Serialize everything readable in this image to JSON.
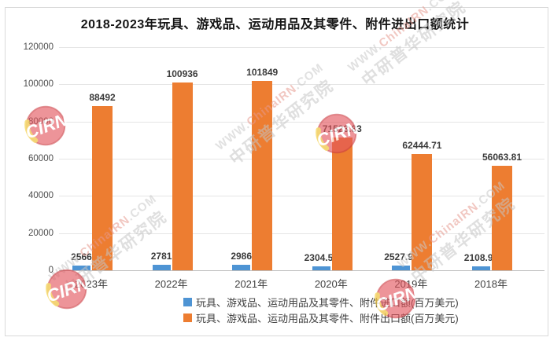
{
  "title": "2018-2023年玩具、游戏品、运动用品及其零件、附件进出口额统计",
  "chart_data": {
    "type": "bar",
    "title": "2018-2023年玩具、游戏品、运动用品及其零件、附件进出口额统计",
    "categories": [
      "2023年",
      "2022年",
      "2021年",
      "2020年",
      "2019年",
      "2018年"
    ],
    "series": [
      {
        "name": "玩具、游戏品、运动用品及其零件、附件进口额(百万美元)",
        "color": "#4E94D4",
        "values": [
          2566,
          2781,
          2986,
          2304.58,
          2527.93,
          2108.91
        ],
        "labels": [
          "2566",
          "2781",
          "2986",
          "2304.58",
          "2527.93",
          "2108.91"
        ]
      },
      {
        "name": "玩具、游戏品、运动用品及其零件、附件出口额(百万美元)",
        "color": "#ED7D31",
        "values": [
          88492,
          100936,
          101849,
          71523.83,
          62444.71,
          56063.81
        ],
        "labels": [
          "88492",
          "100936",
          "101849",
          "71523.83",
          "62444.71",
          "56063.81"
        ]
      }
    ],
    "xlabel": "",
    "ylabel": "",
    "ylim": [
      0,
      120000
    ],
    "ytick_interval": 20000,
    "yticks": [
      "0",
      "20000",
      "40000",
      "60000",
      "80000",
      "100000",
      "120000"
    ],
    "grid": true,
    "legend_position": "bottom"
  },
  "watermark": {
    "line1_prefix": "WWW.",
    "line1_brand": "ChinaIRN",
    "line1_suffix": ".COM",
    "line2": "中研普华研究院",
    "logo_text": "CIRN"
  }
}
